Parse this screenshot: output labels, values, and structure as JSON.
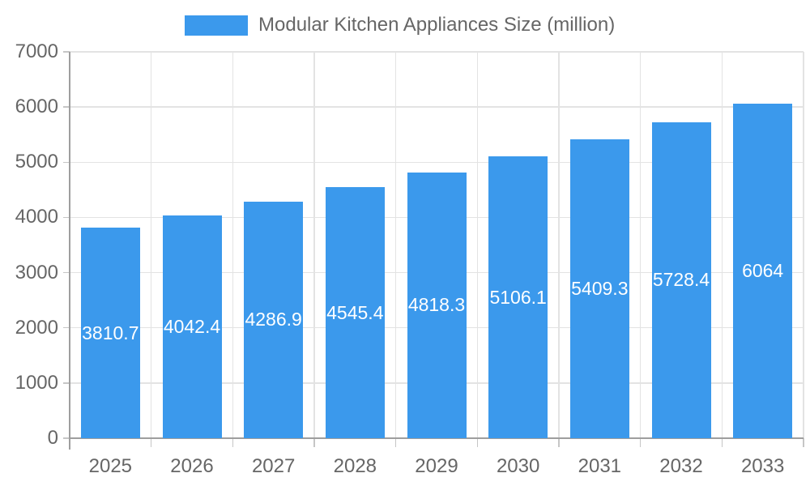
{
  "colors": {
    "bar": "#3B99EC",
    "value_label": "#FFFFFF",
    "axis_text": "#666666",
    "gridline": "#E3E3E3",
    "axis_line": "#9E9E9E",
    "tick": "#C6C6C6",
    "background": "#FFFFFF"
  },
  "legend": {
    "swatch_icon": "series-color-swatch"
  },
  "chart_data": {
    "type": "bar",
    "title": "Modular Kitchen Appliances Size (million)",
    "legend_position": "top",
    "categories": [
      "2025",
      "2026",
      "2027",
      "2028",
      "2029",
      "2030",
      "2031",
      "2032",
      "2033"
    ],
    "values": [
      3810.7,
      4042.4,
      4286.9,
      4545.4,
      4818.3,
      5106.1,
      5409.3,
      5728.4,
      6064
    ],
    "value_labels": [
      "3810.7",
      "4042.4",
      "4286.9",
      "4545.4",
      "4818.3",
      "5106.1",
      "5409.3",
      "5728.4",
      "6064"
    ],
    "xlabel": "",
    "ylabel": "",
    "ylim": [
      0,
      7000
    ],
    "y_tick_labels": [
      "0",
      "1000",
      "2000",
      "3000",
      "4000",
      "5000",
      "6000",
      "7000"
    ],
    "grid": true
  }
}
